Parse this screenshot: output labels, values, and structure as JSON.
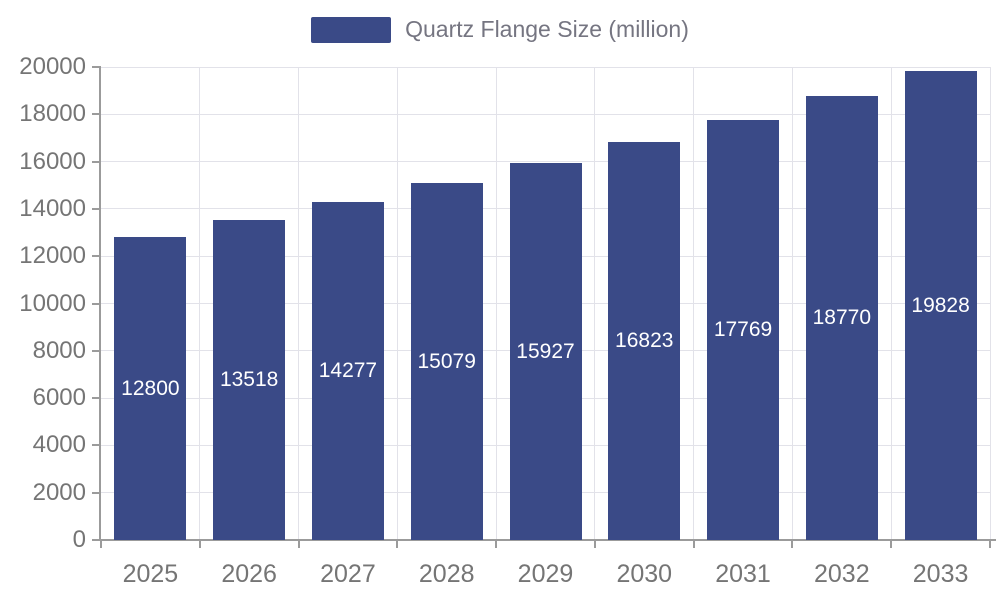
{
  "legend": {
    "label": "Quartz Flange Size (million)"
  },
  "chart_data": {
    "type": "bar",
    "title": "Quartz Flange Size (million)",
    "categories": [
      "2025",
      "2026",
      "2027",
      "2028",
      "2029",
      "2030",
      "2031",
      "2032",
      "2033"
    ],
    "values": [
      12800,
      13518,
      14277,
      15079,
      15927,
      16823,
      17769,
      18770,
      19828
    ],
    "series": [
      {
        "name": "Quartz Flange Size (million)",
        "values": [
          12800,
          13518,
          14277,
          15079,
          15927,
          16823,
          17769,
          18770,
          19828
        ]
      }
    ],
    "xlabel": "",
    "ylabel": "",
    "ylim": [
      0,
      20000
    ],
    "ytick_step": 2000,
    "ytick_labels": [
      "0",
      "2000",
      "4000",
      "6000",
      "8000",
      "10000",
      "12000",
      "14000",
      "16000",
      "18000",
      "20000"
    ],
    "grid": true,
    "legend_position": "top-center",
    "value_labels": "inside-center",
    "colors": {
      "bar_fill": "#3A4A87",
      "bar_value_label": "#FFFFFF",
      "gridline": "#E2E2E9",
      "axis_line": "#9B9B9B",
      "tick_label": "#757575",
      "legend_text": "#757581",
      "background": "#FFFFFF"
    }
  }
}
